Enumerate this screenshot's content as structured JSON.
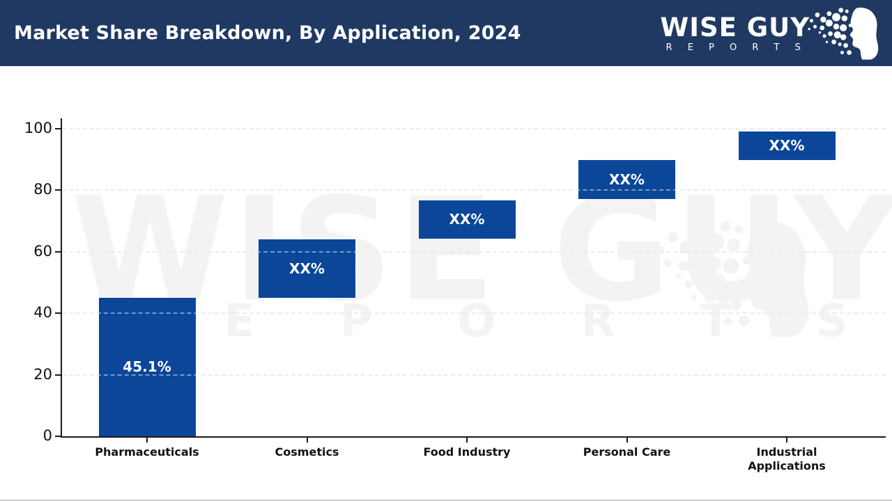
{
  "header": {
    "title": "Market Share Breakdown, By Application, 2024",
    "background_color": "#203962",
    "logo": {
      "primary": "WISE GUY",
      "secondary": "R E P O R T S"
    }
  },
  "watermark": {
    "line1": "WISE GUY",
    "line2": "R E P O R T S"
  },
  "chart_data": {
    "type": "bar",
    "subtype": "waterfall",
    "title": "Market Share Breakdown, By Application, 2024",
    "xlabel": "",
    "ylabel": "",
    "ylim": [
      0,
      105
    ],
    "y_ticks": [
      0,
      20,
      40,
      60,
      80,
      100
    ],
    "grid": "horizontal-dashed",
    "legend": "none",
    "bar_color": "#0b4699",
    "label_color": "#ffffff",
    "categories": [
      "Pharmaceuticals",
      "Cosmetics",
      "Food Industry",
      "Personal Care",
      "Industrial Applications"
    ],
    "segments": [
      {
        "category": "Pharmaceuticals",
        "start": 0,
        "end": 45.1,
        "label": "45.1%"
      },
      {
        "category": "Cosmetics",
        "start": 45.1,
        "end": 64.1,
        "label": "XX%"
      },
      {
        "category": "Food Industry",
        "start": 64.3,
        "end": 76.7,
        "label": "XX%"
      },
      {
        "category": "Personal Care",
        "start": 77.1,
        "end": 89.8,
        "label": "XX%"
      },
      {
        "category": "Industrial Applications",
        "start": 89.9,
        "end": 99.1,
        "label": "XX%"
      }
    ]
  }
}
